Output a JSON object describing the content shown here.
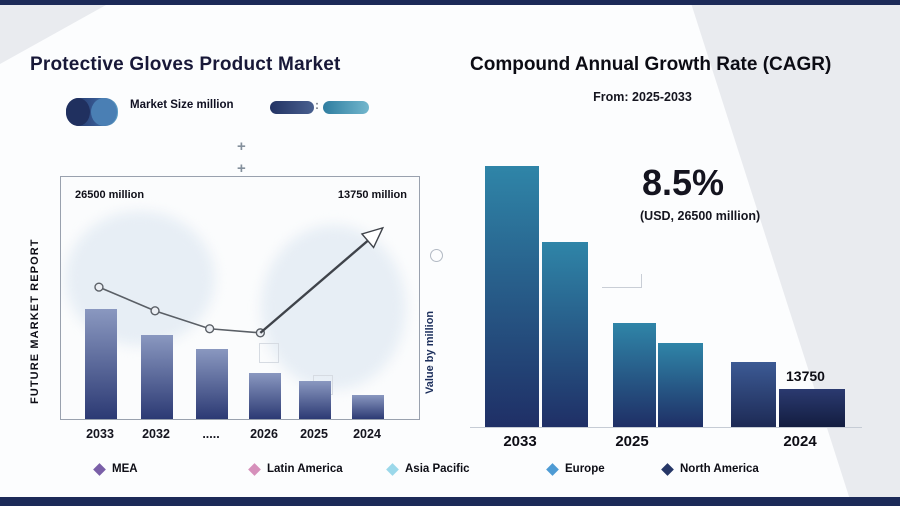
{
  "colors": {
    "navy": "#1c2a58",
    "bg": "#e9ebef",
    "bar-top": "#8a98c0",
    "bar-bottom": "#2c3a74",
    "rbar-top": "#2f85a8",
    "rbar-bottom": "#1f2f66"
  },
  "decor": {
    "plus": "+",
    "pill_separator": ":"
  },
  "legend": {
    "items": [
      {
        "label": "MEA",
        "color": "#7a5fa8"
      },
      {
        "label": "Latin America",
        "color": "#d690bb"
      },
      {
        "label": "Asia Pacific",
        "color": "#9bd8ea"
      },
      {
        "label": "Europe",
        "color": "#4e9bd4"
      },
      {
        "label": "North America",
        "color": "#263767"
      }
    ]
  },
  "chart_data": [
    {
      "id": "market-size-by-year",
      "type": "bar",
      "title": "Protective Gloves Product Market",
      "legend_label": "Market Size million",
      "side_label": "FUTURE MARKET REPORT",
      "categories": [
        "2033",
        "2032",
        ".....",
        "2026",
        "2025",
        "2024"
      ],
      "values_relative": [
        0.45,
        0.345,
        0.285,
        0.19,
        0.155,
        0.1
      ],
      "labeled_values": {
        "2033": "26500 million",
        "2024": "13750 million"
      },
      "annotations": [
        {
          "text": "26500 million",
          "position": "top-left"
        },
        {
          "text": "13750 million",
          "position": "top-right"
        }
      ],
      "overlay_line": {
        "type": "line-with-arrow",
        "points_relative": [
          [
            0.105,
            0.455
          ],
          [
            0.262,
            0.553
          ],
          [
            0.415,
            0.627
          ],
          [
            0.557,
            0.644
          ]
        ],
        "arrow_end_relative": [
          0.9,
          0.21
        ]
      },
      "grid": false,
      "legend_position": "top-left"
    },
    {
      "id": "cagr",
      "type": "grouped-bar",
      "title": "Compound Annual Growth Rate (CAGR)",
      "subtitle": "From: 2025-2033",
      "cagr": "8.5%",
      "cagr_note": "(USD, 26500 million)",
      "ylabel": "Value by million",
      "categories": [
        "2033",
        "2025",
        "2024"
      ],
      "series_relative": [
        [
          1.0,
          0.71
        ],
        [
          0.4,
          0.32
        ],
        [
          0.25,
          0.145
        ]
      ],
      "value_label": {
        "text": "13750",
        "category": "2024"
      },
      "grid": false
    }
  ]
}
